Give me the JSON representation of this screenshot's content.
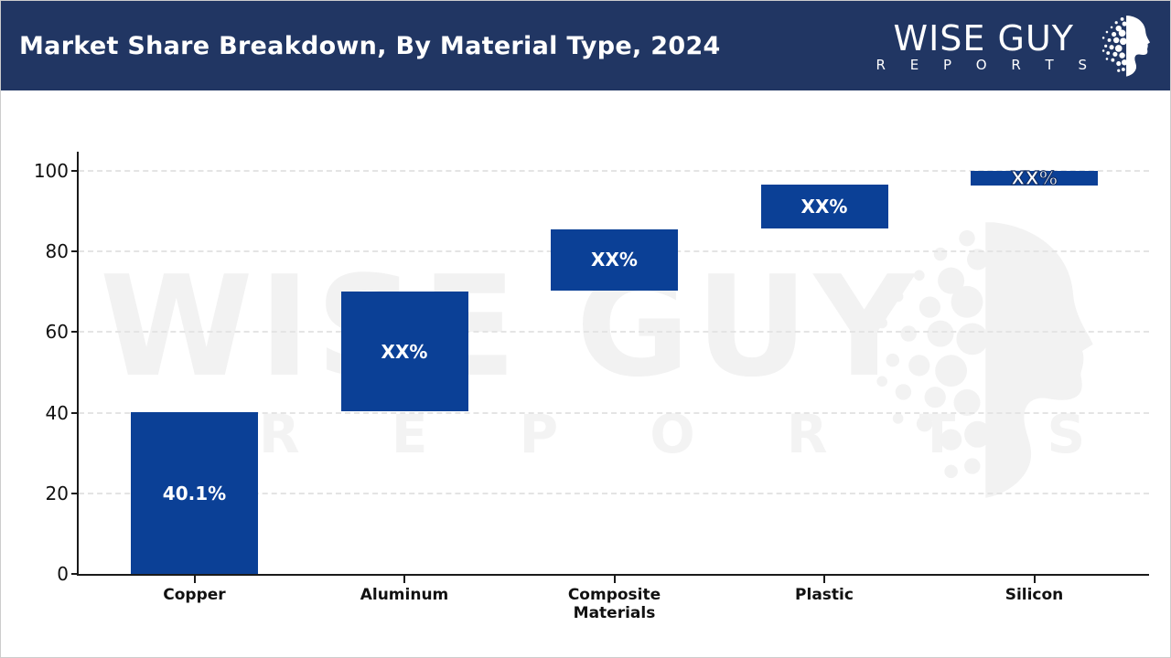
{
  "header": {
    "title": "Market Share Breakdown, By Material Type, 2024",
    "logo": {
      "line1": "WISE GUY",
      "line2": "R E P O R T S"
    }
  },
  "watermark": {
    "line1": "WISE GUY",
    "line2": "R E P O R T S"
  },
  "colors": {
    "header_bg": "#213663",
    "bar": "#0b4096",
    "bar_label": "#ffffff",
    "bar_label_outline": "#122f66",
    "grid": "#e4e4e4",
    "axis": "#1a1a1a",
    "watermark": "#f2f2f2",
    "frame_border": "#cccccc"
  },
  "chart_data": {
    "type": "bar",
    "subtype": "waterfall",
    "title": "",
    "xlabel": "",
    "ylabel": "",
    "categories": [
      "Copper",
      "Aluminum",
      "Composite\nMaterials",
      "Plastic",
      "Silicon"
    ],
    "segments": [
      {
        "category": "Copper",
        "start": 0,
        "end": 40.1,
        "label": "40.1%",
        "value_estimate": 40.1
      },
      {
        "category": "Aluminum",
        "start": 40.3,
        "end": 70.0,
        "label": "XX%",
        "value_estimate": 29.7
      },
      {
        "category": "Composite Materials",
        "start": 70.3,
        "end": 85.5,
        "label": "XX%",
        "value_estimate": 15.2
      },
      {
        "category": "Plastic",
        "start": 85.7,
        "end": 96.6,
        "label": "XX%",
        "value_estimate": 10.9
      },
      {
        "category": "Silicon",
        "start": 96.3,
        "end": 100,
        "label": "XX%",
        "value_estimate": 3.7
      }
    ],
    "yticks": [
      0,
      20,
      40,
      60,
      80,
      100
    ],
    "ylim": [
      0,
      105
    ],
    "grid": "horizontal dashed",
    "legend": "none"
  }
}
